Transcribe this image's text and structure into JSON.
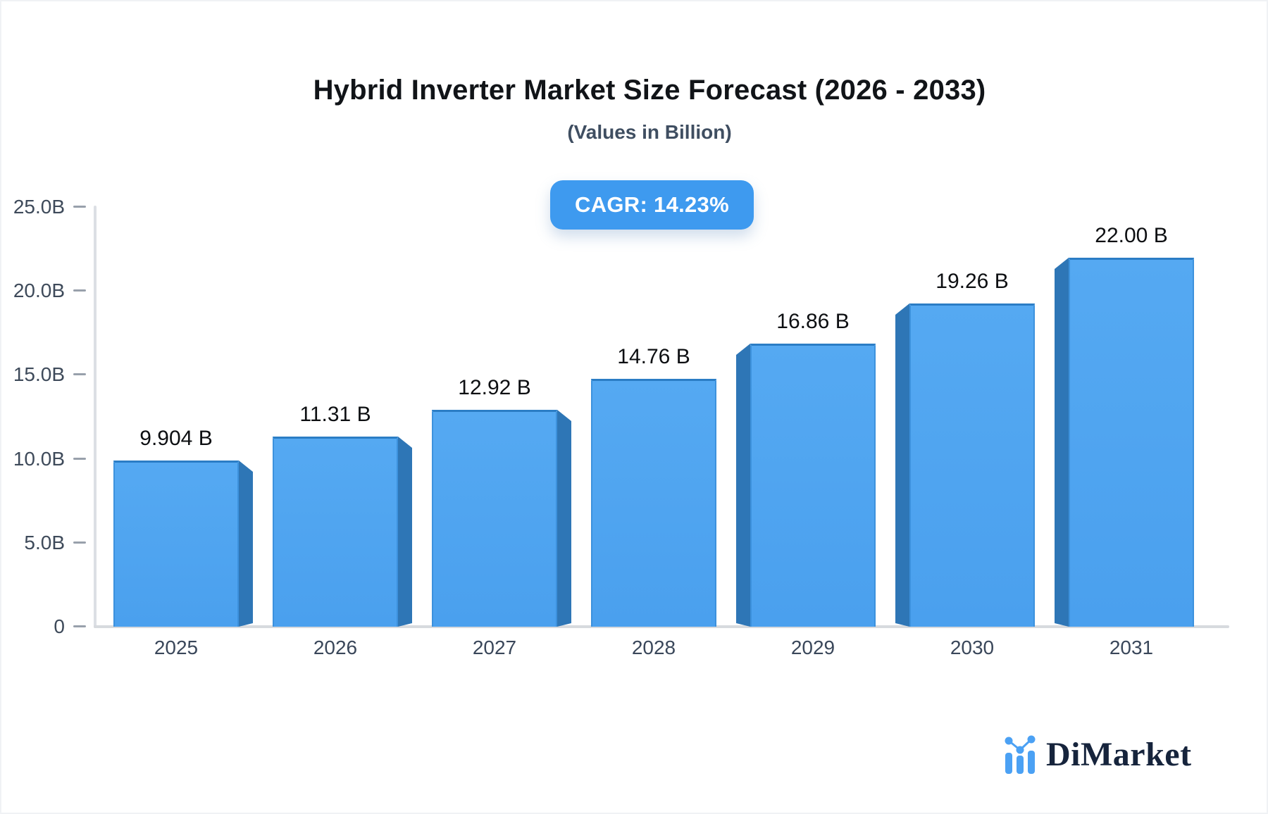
{
  "title": "Hybrid Inverter Market Size Forecast (2026 - 2033)",
  "subtitle": "(Values in Billion)",
  "badge": {
    "label": "CAGR: 14.23%",
    "bg_color": "#3e9aef"
  },
  "chart_data": {
    "type": "bar",
    "categories": [
      "2025",
      "2026",
      "2027",
      "2028",
      "2029",
      "2030",
      "2031"
    ],
    "values": [
      9.904,
      11.31,
      12.92,
      14.76,
      16.86,
      19.26,
      22.0
    ],
    "value_labels": [
      "9.904 B",
      "11.31 B",
      "12.92 B",
      "14.76 B",
      "16.86 B",
      "19.26 B",
      "22.00 B"
    ],
    "title": "Hybrid Inverter Market Size Forecast (2026 - 2033)",
    "subtitle": "(Values in Billion)",
    "xlabel": "",
    "ylabel": "",
    "ylim": [
      0,
      25
    ],
    "yticks": [
      0,
      5,
      10,
      15,
      20,
      25
    ],
    "ytick_labels": [
      "0",
      "5.0B",
      "10.0B",
      "15.0B",
      "20.0B",
      "25.0B"
    ],
    "grid": false,
    "legend": false,
    "bar_face_color": "#4aa0ee",
    "bar_side_color": "#2e76b6",
    "bar_style": "3d-perspective-center"
  },
  "logo": {
    "text": "DiMarket",
    "icon": "bar-chart-trend-icon",
    "text_color": "#16243c",
    "icon_color": "#4ba1f4"
  }
}
